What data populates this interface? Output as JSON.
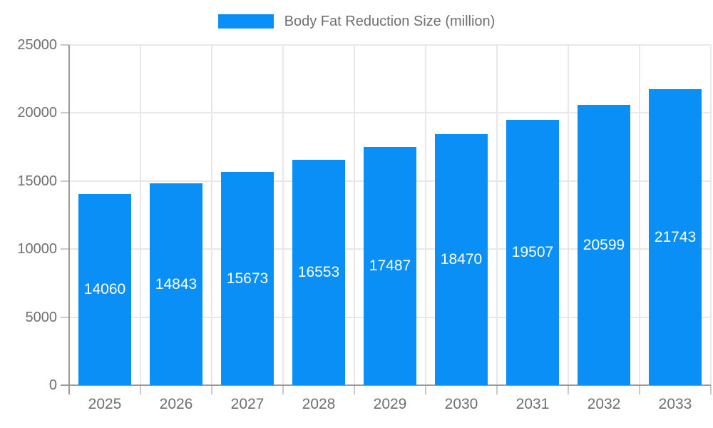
{
  "legend": {
    "label": "Body Fat Reduction Size (million)"
  },
  "colors": {
    "bar": "#0a8ff6",
    "axis": "#9a9a9a",
    "grid": "#e8e8e8",
    "tick": "#c9c9c9",
    "text": "#6f6f6f",
    "bar_label": "#ffffff",
    "background": "#ffffff"
  },
  "chart_data": {
    "type": "bar",
    "title": "Body Fat Reduction Size (million)",
    "categories": [
      "2025",
      "2026",
      "2027",
      "2028",
      "2029",
      "2030",
      "2031",
      "2032",
      "2033"
    ],
    "values": [
      14060,
      14843,
      15673,
      16553,
      17487,
      18470,
      19507,
      20599,
      21743
    ],
    "xlabel": "",
    "ylabel": "",
    "ylim": [
      0,
      25000
    ],
    "ytick_interval": 5000,
    "ytick_labels": [
      "0",
      "5000",
      "10000",
      "15000",
      "20000",
      "25000"
    ],
    "grid": true,
    "legend_position": "top-center",
    "bar_labels": "inside-center-white"
  }
}
